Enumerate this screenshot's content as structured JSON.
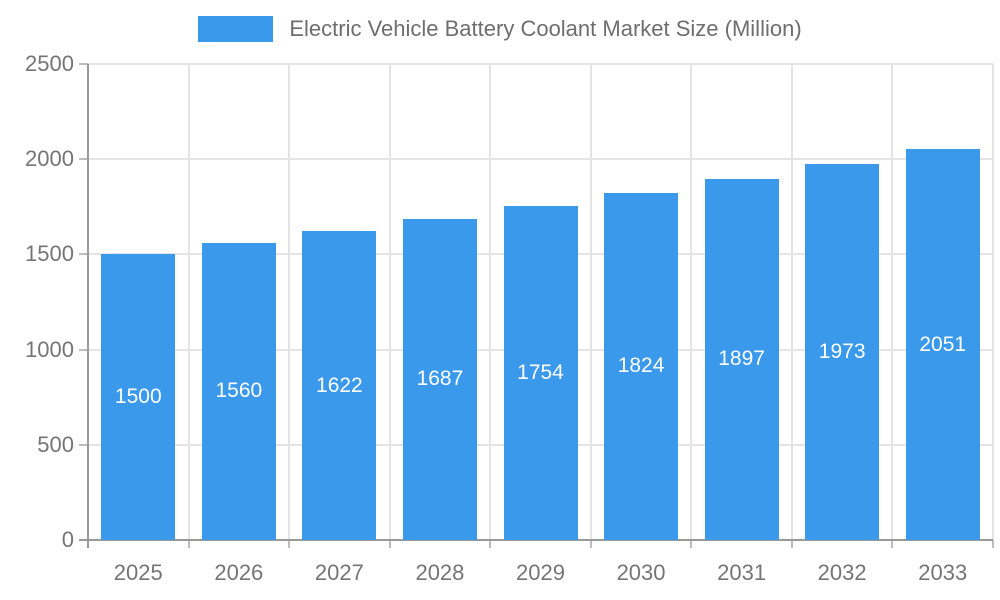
{
  "chart_data": {
    "type": "bar",
    "title": "Electric Vehicle Battery Coolant Market Size (Million)",
    "categories": [
      "2025",
      "2026",
      "2027",
      "2028",
      "2029",
      "2030",
      "2031",
      "2032",
      "2033"
    ],
    "series": [
      {
        "name": "Electric Vehicle Battery Coolant Market Size (Million)",
        "values": [
          1500,
          1560,
          1622,
          1687,
          1754,
          1824,
          1897,
          1973,
          2051
        ]
      }
    ],
    "xlabel": "",
    "ylabel": "",
    "ylim": [
      0,
      2500
    ],
    "yticks": [
      0,
      500,
      1000,
      1500,
      2000,
      2500
    ],
    "grid": true,
    "legend_position": "top-center",
    "bar_labels_inside": true,
    "colors": {
      "bar": "#3B99EC",
      "bar_label": "#FFFFFF",
      "gridline": "#E4E4E4",
      "axis_line": "#999999",
      "tick": "#BDBDBD",
      "tick_label": "#757575",
      "title": "#6E6E6E",
      "background": "#FFFFFF"
    }
  }
}
